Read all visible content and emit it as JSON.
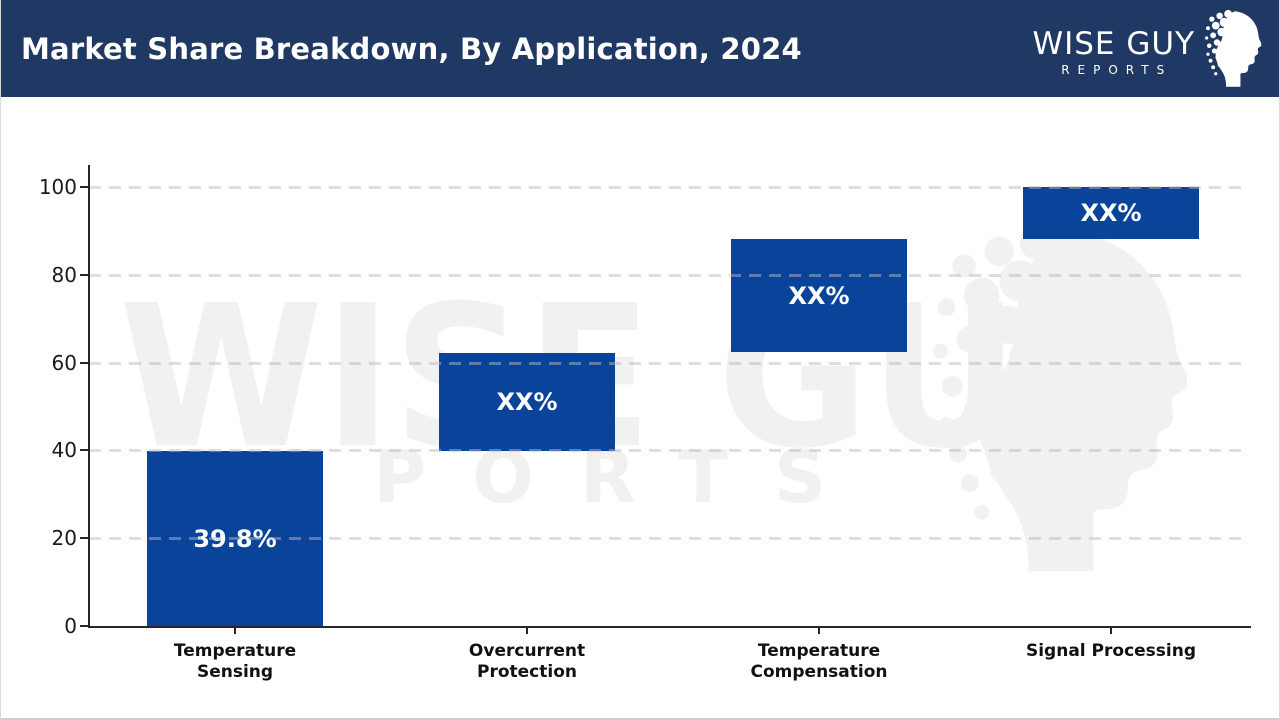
{
  "header": {
    "title": "Market Share Breakdown, By Application, 2024",
    "logo": {
      "line1": "WISE GUY",
      "line2": "REPORTS"
    }
  },
  "watermark": {
    "line1": "WISE GUY",
    "line2": "REPORTS"
  },
  "colors": {
    "header_bg": "#203864",
    "bar": "#09439a",
    "bar_label_text": "#ffffff",
    "axis": "#262626",
    "tick_text": "#1a1a1a",
    "gridline": "#dcdcdc",
    "watermark": "#f1f1f1"
  },
  "chart_data": {
    "type": "bar",
    "subtype": "waterfall-stacked",
    "title": "Market Share Breakdown, By Application, 2024",
    "categories": [
      "Temperature Sensing",
      "Overcurrent Protection",
      "Temperature Compensation",
      "Signal Processing"
    ],
    "category_lines": [
      [
        "Temperature",
        "Sensing"
      ],
      [
        "Overcurrent",
        "Protection"
      ],
      [
        "Temperature",
        "Compensation"
      ],
      [
        "Signal Processing"
      ]
    ],
    "segments": [
      {
        "category": "Temperature Sensing",
        "start": 0,
        "end": 39.8,
        "value": 39.8,
        "label": "39.8%"
      },
      {
        "category": "Overcurrent Protection",
        "start": 39.8,
        "end": 62.3,
        "value": 22.5,
        "label": "XX%"
      },
      {
        "category": "Temperature Compensation",
        "start": 62.3,
        "end": 88.2,
        "value": 25.9,
        "label": "XX%"
      },
      {
        "category": "Signal Processing",
        "start": 88.2,
        "end": 100,
        "value": 11.8,
        "label": "XX%"
      }
    ],
    "xlabel": "",
    "ylabel": "",
    "ylim": [
      0,
      100
    ],
    "yticks": [
      0,
      20,
      40,
      60,
      80,
      100
    ],
    "grid": "horizontal-dashed",
    "legend": "none"
  }
}
